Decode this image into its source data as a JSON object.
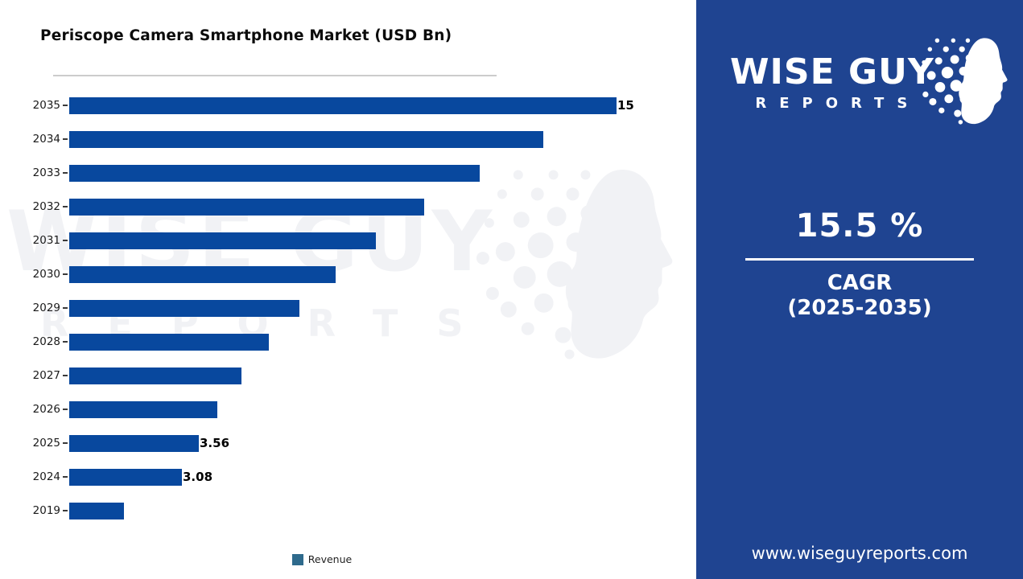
{
  "chart_data": {
    "type": "bar",
    "orientation": "horizontal",
    "title": "Periscope Camera Smartphone Market (USD Bn)",
    "categories": [
      "2035",
      "2034",
      "2033",
      "2032",
      "2031",
      "2030",
      "2029",
      "2028",
      "2027",
      "2026",
      "2025",
      "2024",
      "2019"
    ],
    "values": [
      15,
      13.0,
      11.25,
      9.73,
      8.4,
      7.3,
      6.31,
      5.47,
      4.72,
      4.06,
      3.56,
      3.08,
      1.5
    ],
    "value_labels": [
      "15",
      "",
      "",
      "",
      "",
      "",
      "",
      "",
      "",
      "",
      "3.56",
      "3.08",
      ""
    ],
    "xlim": [
      0,
      15
    ],
    "grid": false,
    "legend": "Revenue",
    "legend_position": "bottom",
    "bar_color": "#08489E",
    "legend_swatch_color": "#2E6A8C"
  },
  "watermark": {
    "line1": "WISE GUY",
    "line2": "REPORTS"
  },
  "sidebar": {
    "background_color": "#1F4491",
    "logo_line1": "WISE GUY",
    "logo_line2": "REPORTS",
    "cagr_value": "15.5 %",
    "cagr_label": "CAGR",
    "cagr_period": "(2025-2035)",
    "website": "www.wiseguyreports.com"
  }
}
